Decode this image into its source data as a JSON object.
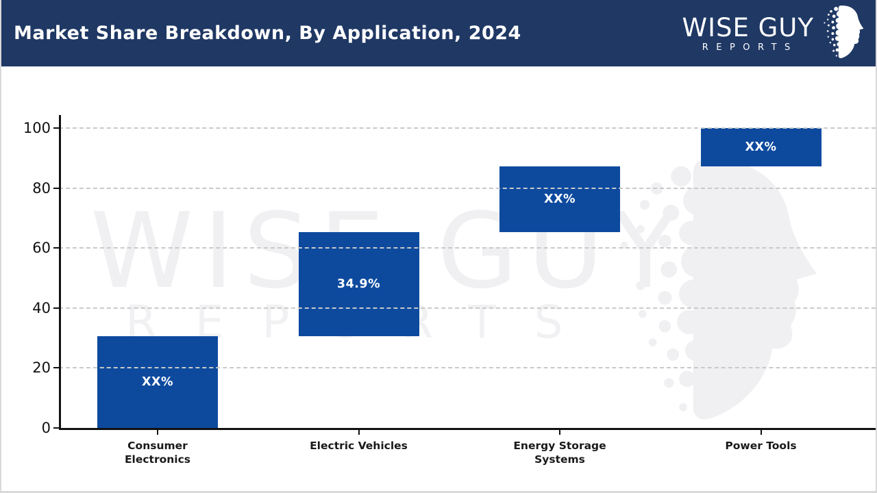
{
  "header": {
    "title": "Market Share Breakdown, By Application, 2024",
    "logo_line1": "WISE GUY",
    "logo_line2": "REPORTS"
  },
  "watermark": {
    "line1": "WISE GUY",
    "line2": "REPORTS"
  },
  "colors": {
    "header_bg": "#1f3864",
    "bar": "#0d4a9e",
    "bar_label": "#ffffff",
    "grid": "#c9c9c9",
    "axis": "#111111",
    "watermark": "#f0f0f2"
  },
  "chart_data": {
    "type": "bar",
    "subtype": "floating-waterfall",
    "title": "Market Share Breakdown, By Application, 2024",
    "categories": [
      "Consumer\nElectronics",
      "Electric Vehicles",
      "Energy Storage\nSystems",
      "Power Tools"
    ],
    "segments": [
      {
        "category": "Consumer Electronics",
        "start": 0,
        "end": 30.5,
        "label": "XX%"
      },
      {
        "category": "Electric Vehicles",
        "start": 30.5,
        "end": 65.4,
        "label": "34.9%"
      },
      {
        "category": "Energy Storage Systems",
        "start": 65.4,
        "end": 87.3,
        "label": "XX%"
      },
      {
        "category": "Power Tools",
        "start": 87.3,
        "end": 100,
        "label": "XX%"
      }
    ],
    "ylim": [
      0,
      100
    ],
    "yticks": [
      0,
      20,
      40,
      60,
      80,
      100
    ],
    "xlabel": "",
    "ylabel": "",
    "grid": "horizontal-dashed",
    "legend": false,
    "bar_color": "#0d4a9e",
    "bar_label_color": "#ffffff"
  }
}
